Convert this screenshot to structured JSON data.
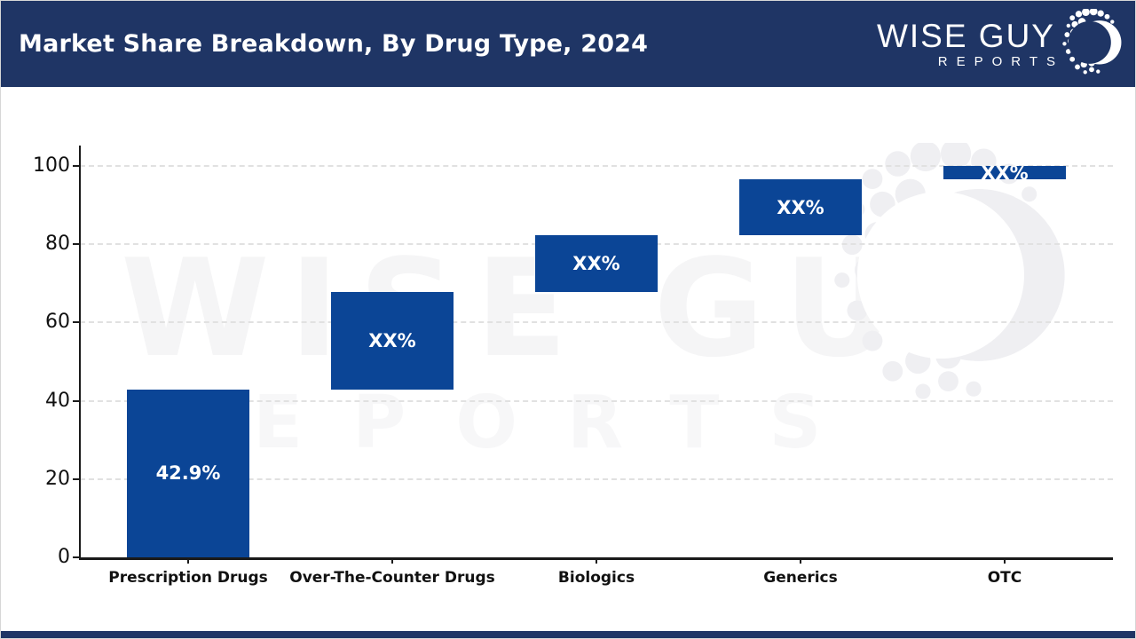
{
  "header": {
    "title": "Market Share Breakdown, By Drug Type, 2024"
  },
  "logo": {
    "line1": "WISE GUY",
    "line2": "REPORTS"
  },
  "watermark": {
    "line1": "WISE GUY",
    "line2": "REPORTS"
  },
  "chart_data": {
    "type": "bar",
    "subtype": "waterfall",
    "title": "Market Share Breakdown, By Drug Type, 2024",
    "categories": [
      "Prescription Drugs",
      "Over-The-Counter Drugs",
      "Biologics",
      "Generics",
      "OTC"
    ],
    "segments": [
      {
        "category": "Prescription Drugs",
        "start": 0,
        "end": 42.9,
        "value_label": "42.9%"
      },
      {
        "category": "Over-The-Counter Drugs",
        "start": 42.9,
        "end": 67.9,
        "value_label": "XX%"
      },
      {
        "category": "Biologics",
        "start": 67.9,
        "end": 82.2,
        "value_label": "XX%"
      },
      {
        "category": "Generics",
        "start": 82.2,
        "end": 96.5,
        "value_label": "XX%"
      },
      {
        "category": "OTC",
        "start": 96.5,
        "end": 100,
        "value_label": "XX%"
      }
    ],
    "xlabel": "",
    "ylabel": "",
    "ylim": [
      0,
      100
    ],
    "yticks": [
      0,
      20,
      40,
      60,
      80,
      100
    ],
    "grid": "horizontal-dashed",
    "legend": "none",
    "bar_color": "#0b4596",
    "value_label_color": "#ffffff"
  }
}
